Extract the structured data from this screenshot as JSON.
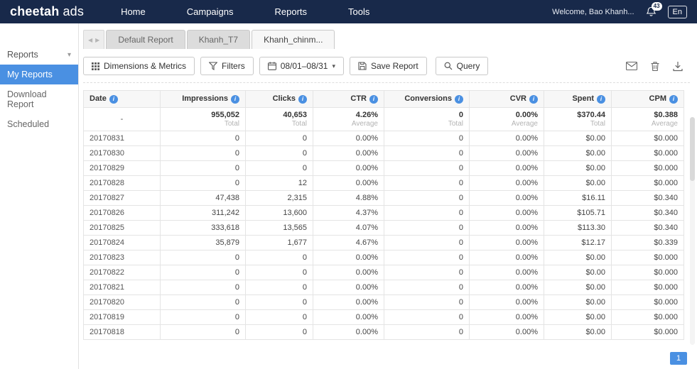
{
  "navbar": {
    "logo_bold": "cheetah",
    "logo_light": "ads",
    "items": [
      {
        "label": "Home"
      },
      {
        "label": "Campaigns"
      },
      {
        "label": "Reports"
      },
      {
        "label": "Tools"
      }
    ],
    "welcome": "Welcome,",
    "username": "Bao Khanh...",
    "notification_count": "43",
    "language": "En"
  },
  "sidebar": {
    "section": "Reports",
    "items": [
      {
        "label": "My Reports",
        "active": true
      },
      {
        "label": "Download Report",
        "active": false
      },
      {
        "label": "Scheduled",
        "active": false
      }
    ]
  },
  "tabs": [
    {
      "label": "Default Report",
      "active": false
    },
    {
      "label": "Khanh_T7",
      "active": false
    },
    {
      "label": "Khanh_chinm...",
      "active": true
    }
  ],
  "toolbar": {
    "dimensions_metrics": "Dimensions & Metrics",
    "filters": "Filters",
    "date_range": "08/01–08/31",
    "save_report": "Save Report",
    "query": "Query"
  },
  "table": {
    "columns": [
      "Date",
      "Impressions",
      "Clicks",
      "CTR",
      "Conversions",
      "CVR",
      "Spent",
      "CPM"
    ],
    "summary": {
      "date": "-",
      "cells": [
        {
          "value": "955,052",
          "sub": "Total"
        },
        {
          "value": "40,653",
          "sub": "Total"
        },
        {
          "value": "4.26%",
          "sub": "Average"
        },
        {
          "value": "0",
          "sub": "Total"
        },
        {
          "value": "0.00%",
          "sub": "Average"
        },
        {
          "value": "$370.44",
          "sub": "Total"
        },
        {
          "value": "$0.388",
          "sub": "Average"
        }
      ]
    },
    "rows": [
      [
        "20170831",
        "0",
        "0",
        "0.00%",
        "0",
        "0.00%",
        "$0.00",
        "$0.000"
      ],
      [
        "20170830",
        "0",
        "0",
        "0.00%",
        "0",
        "0.00%",
        "$0.00",
        "$0.000"
      ],
      [
        "20170829",
        "0",
        "0",
        "0.00%",
        "0",
        "0.00%",
        "$0.00",
        "$0.000"
      ],
      [
        "20170828",
        "0",
        "12",
        "0.00%",
        "0",
        "0.00%",
        "$0.00",
        "$0.000"
      ],
      [
        "20170827",
        "47,438",
        "2,315",
        "4.88%",
        "0",
        "0.00%",
        "$16.11",
        "$0.340"
      ],
      [
        "20170826",
        "311,242",
        "13,600",
        "4.37%",
        "0",
        "0.00%",
        "$105.71",
        "$0.340"
      ],
      [
        "20170825",
        "333,618",
        "13,565",
        "4.07%",
        "0",
        "0.00%",
        "$113.30",
        "$0.340"
      ],
      [
        "20170824",
        "35,879",
        "1,677",
        "4.67%",
        "0",
        "0.00%",
        "$12.17",
        "$0.339"
      ],
      [
        "20170823",
        "0",
        "0",
        "0.00%",
        "0",
        "0.00%",
        "$0.00",
        "$0.000"
      ],
      [
        "20170822",
        "0",
        "0",
        "0.00%",
        "0",
        "0.00%",
        "$0.00",
        "$0.000"
      ],
      [
        "20170821",
        "0",
        "0",
        "0.00%",
        "0",
        "0.00%",
        "$0.00",
        "$0.000"
      ],
      [
        "20170820",
        "0",
        "0",
        "0.00%",
        "0",
        "0.00%",
        "$0.00",
        "$0.000"
      ],
      [
        "20170819",
        "0",
        "0",
        "0.00%",
        "0",
        "0.00%",
        "$0.00",
        "$0.000"
      ],
      [
        "20170818",
        "0",
        "0",
        "0.00%",
        "0",
        "0.00%",
        "$0.00",
        "$0.000"
      ]
    ]
  },
  "pagination": {
    "current": "1"
  }
}
